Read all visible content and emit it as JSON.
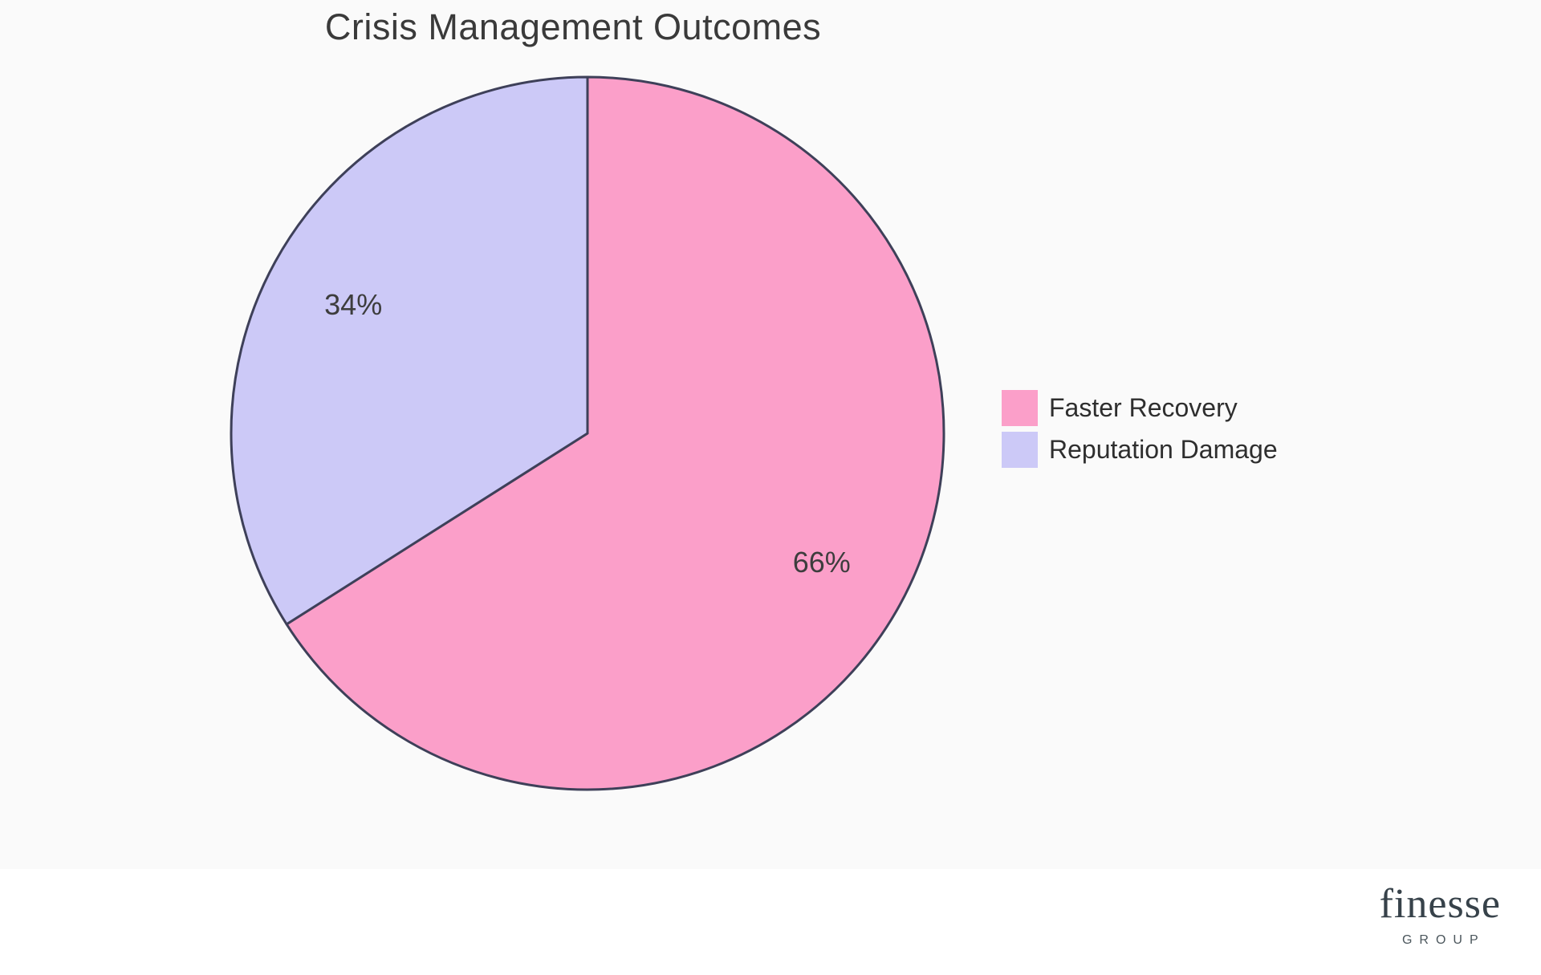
{
  "chart_data": {
    "type": "pie",
    "title": "Crisis Management Outcomes",
    "slices": [
      {
        "label": "Faster Recovery",
        "value": 66,
        "display": "66%",
        "color": "#FB9FC9"
      },
      {
        "label": "Reputation Damage",
        "value": 34,
        "display": "34%",
        "color": "#CCC9F7"
      }
    ],
    "start_angle_deg": 0,
    "direction": "clockwise",
    "stroke_color": "#3E4059",
    "stroke_width": 3,
    "label_color": "#3d3d3d",
    "legend_position": "right",
    "background": "#fafafa"
  },
  "branding": {
    "name": "finesse",
    "tagline": "GROUP"
  }
}
